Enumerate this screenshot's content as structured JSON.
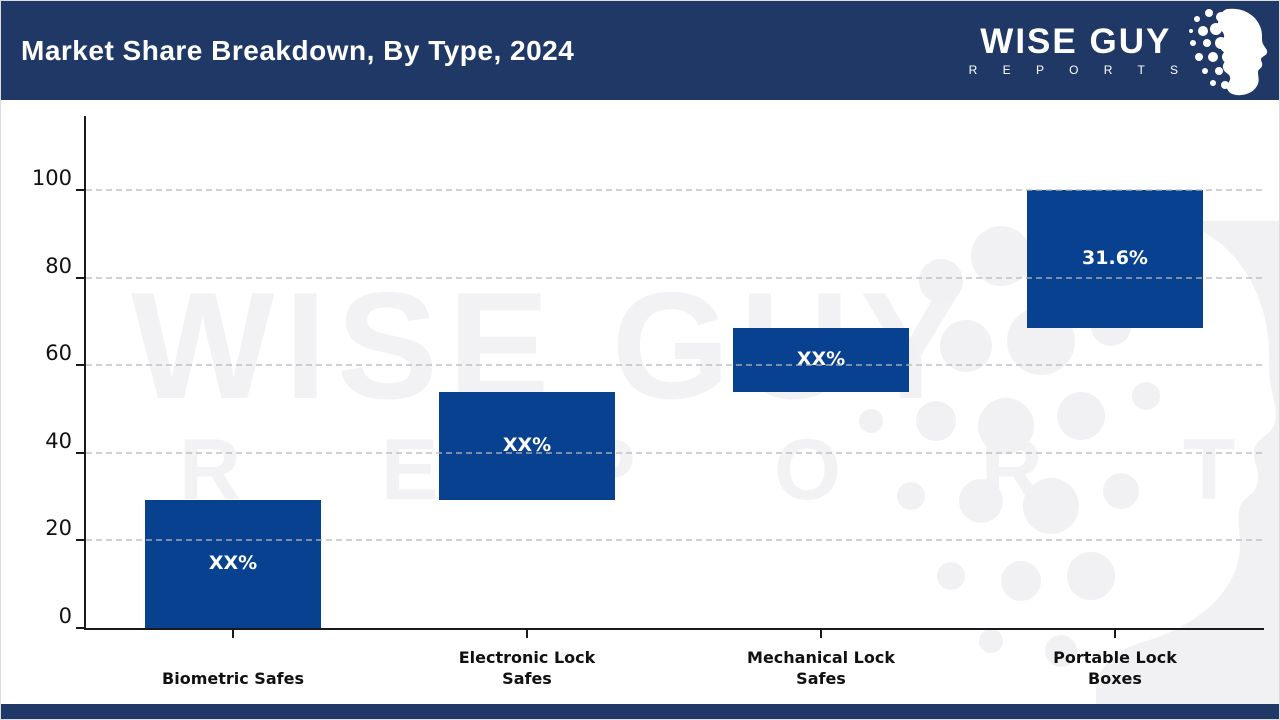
{
  "header": {
    "title": "Market Share Breakdown, By Type, 2024"
  },
  "logo": {
    "name": "WISE GUY",
    "sub": "R E P O R T S",
    "head_icon": "dotted-face-profile"
  },
  "watermark": {
    "line1": "WISE GUY",
    "line2": "R E P O R T S"
  },
  "colors": {
    "header_navy": "#1f3866",
    "bar_blue": "#07418f",
    "gridline_gray": "#d9d9d9",
    "axis_black": "#1a1a1a",
    "label_white": "#ffffff"
  },
  "chart_data": {
    "type": "bar",
    "subtype": "waterfall",
    "title": "Market Share Breakdown, By Type, 2024",
    "xlabel": "",
    "ylabel": "",
    "ylim": [
      0,
      100
    ],
    "yticks": [
      0,
      20,
      40,
      60,
      80,
      100
    ],
    "grid": "horizontal dashed, drawn over bars",
    "legend": "none",
    "categories": [
      [
        "Biometric Safes"
      ],
      [
        "Electronic Lock",
        "Safes"
      ],
      [
        "Mechanical Lock",
        "Safes"
      ],
      [
        "Portable Lock",
        "Boxes"
      ]
    ],
    "segments": [
      {
        "category": "Biometric Safes",
        "start": 0,
        "end": 29.2,
        "value_label": "XX%"
      },
      {
        "category": "Electronic Lock Safes",
        "start": 29.2,
        "end": 53.8,
        "value_label": "XX%"
      },
      {
        "category": "Mechanical Lock Safes",
        "start": 53.8,
        "end": 68.4,
        "value_label": "XX%"
      },
      {
        "category": "Portable Lock Boxes",
        "start": 68.4,
        "end": 100,
        "value_label": "31.6%"
      }
    ]
  }
}
